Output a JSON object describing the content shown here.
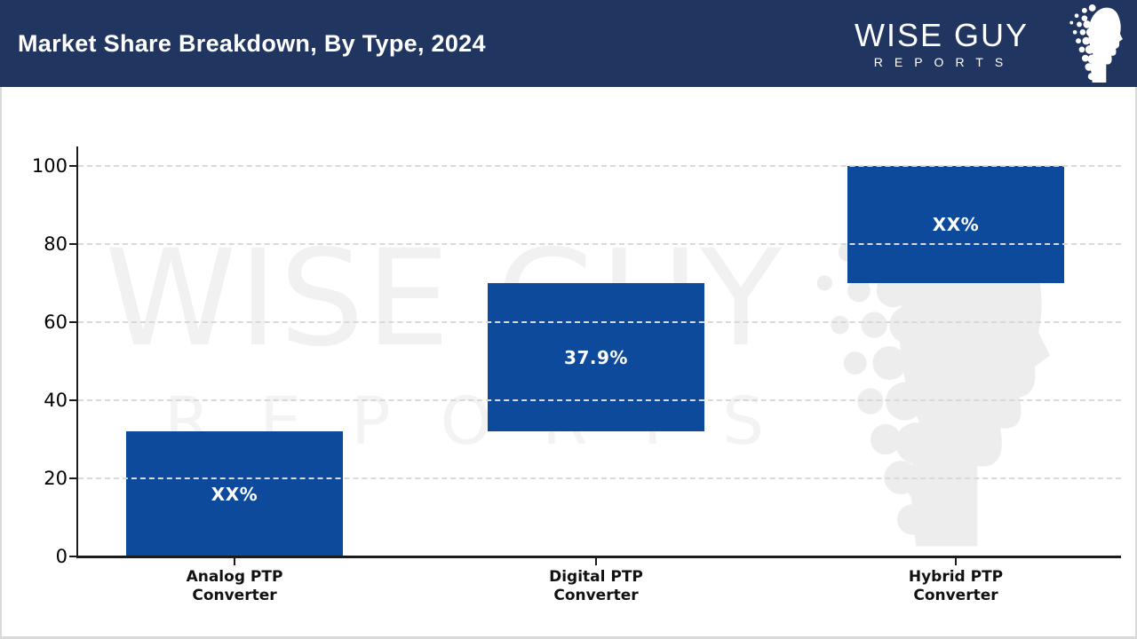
{
  "header": {
    "title": "Market Share Breakdown, By Type, 2024",
    "logo_line1": "WISE GUY",
    "logo_line2": "REPORTS"
  },
  "watermark": {
    "line1": "WISE GUY",
    "line2": "REPORTS"
  },
  "chart_data": {
    "type": "bar",
    "subtype": "floating-waterfall",
    "title": "Market Share Breakdown, By Type, 2024",
    "categories": [
      "Analog PTP Converter",
      "Digital PTP Converter",
      "Hybrid PTP Converter"
    ],
    "category_label_lines": [
      [
        "Analog PTP",
        "Converter"
      ],
      [
        "Digital PTP",
        "Converter"
      ],
      [
        "Hybrid PTP",
        "Converter"
      ]
    ],
    "segments": [
      {
        "category": "Analog PTP Converter",
        "from": 0,
        "to": 32,
        "label": "XX%"
      },
      {
        "category": "Digital PTP Converter",
        "from": 32,
        "to": 69.9,
        "label": "37.9%"
      },
      {
        "category": "Hybrid PTP Converter",
        "from": 69.9,
        "to": 100,
        "label": "XX%"
      }
    ],
    "ylim": [
      0,
      100
    ],
    "yticks": [
      0,
      20,
      40,
      60,
      80,
      100
    ],
    "grid": "horizontal-dashed",
    "legend": "none",
    "colors": {
      "bar": "#0d4a9c",
      "bar_label": "#ffffff",
      "axis": "#1c1c1c",
      "grid": "#d9d9d9",
      "header_bg": "#213561",
      "tick_label": "#000000"
    }
  }
}
